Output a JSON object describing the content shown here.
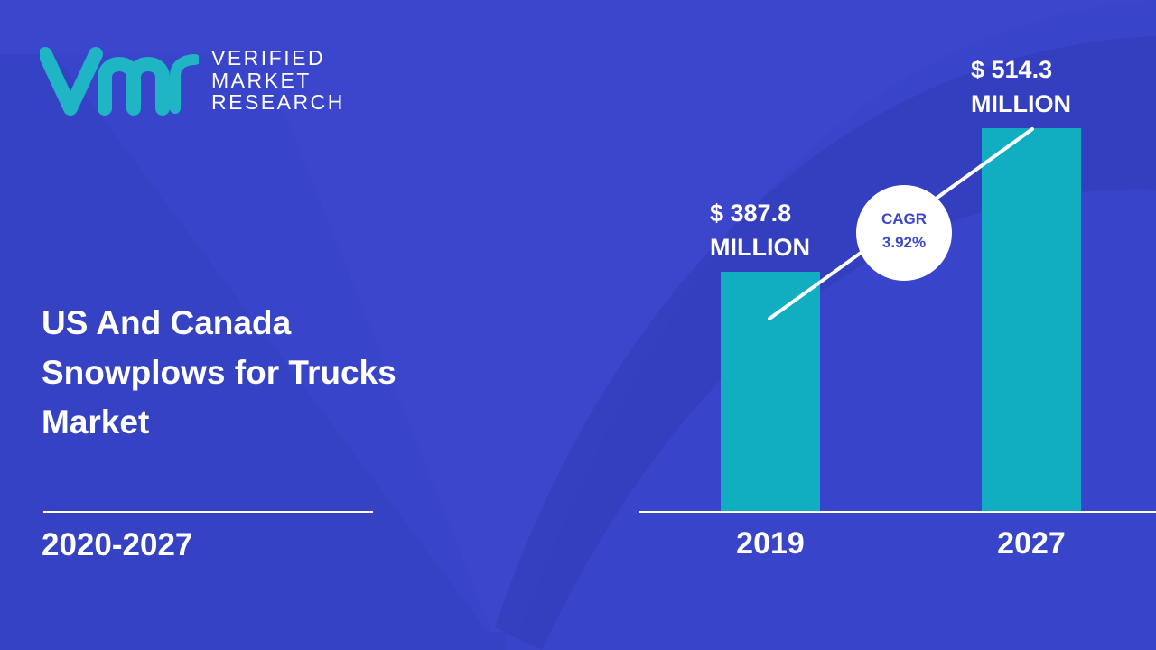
{
  "logo": {
    "line1": "VERIFIED",
    "line2": "MARKET",
    "line3": "RESEARCH",
    "mark_color": "#1fb5c4"
  },
  "title": {
    "line1": "US And Canada",
    "line2": "Snowplows for Trucks",
    "line3": "Market"
  },
  "period": "2020-2027",
  "colors": {
    "background": "#3b46cc",
    "bar": "#10aec0",
    "text": "#ffffff"
  },
  "chart_data": {
    "type": "bar",
    "categories": [
      "2019",
      "2027"
    ],
    "values": [
      387.8,
      514.3
    ],
    "value_labels": [
      {
        "line1": "$ 387.8",
        "line2": "MILLION"
      },
      {
        "line1": "$ 514.3",
        "line2": "MILLION"
      }
    ],
    "annotation": {
      "line1": "CAGR",
      "line2": "3.92%"
    },
    "title": "",
    "xlabel": "",
    "ylabel": "",
    "grid": false,
    "legend": "none"
  }
}
